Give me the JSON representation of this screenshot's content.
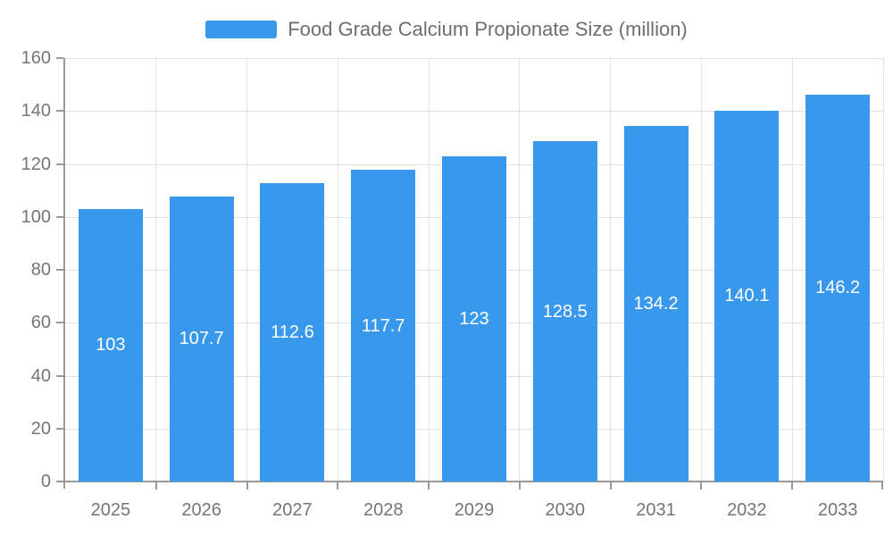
{
  "legend": {
    "label": "Food Grade Calcium Propionate Size (million)"
  },
  "chart_data": {
    "type": "bar",
    "title": "Food Grade Calcium Propionate Size (million)",
    "series_name": "Food Grade Calcium Propionate Size (million)",
    "categories": [
      "2025",
      "2026",
      "2027",
      "2028",
      "2029",
      "2030",
      "2031",
      "2032",
      "2033"
    ],
    "values": [
      103,
      107.7,
      112.6,
      117.7,
      123,
      128.5,
      134.2,
      140.1,
      146.2
    ],
    "value_labels": [
      "103",
      "107.7",
      "112.6",
      "117.7",
      "123",
      "128.5",
      "134.2",
      "140.1",
      "146.2"
    ],
    "xlabel": "",
    "ylabel": "",
    "ylim": [
      0,
      160
    ],
    "yticks": [
      0,
      20,
      40,
      60,
      80,
      100,
      120,
      140,
      160
    ],
    "grid": true,
    "legend_position": "top",
    "colors": {
      "bar": "#3899ec",
      "bar_label_text": "#ffffff",
      "axis_line": "#999999",
      "gridline": "#e3e3e3",
      "axis_text": "#757575",
      "legend_text": "#6e6e6e",
      "background": "#ffffff"
    }
  }
}
